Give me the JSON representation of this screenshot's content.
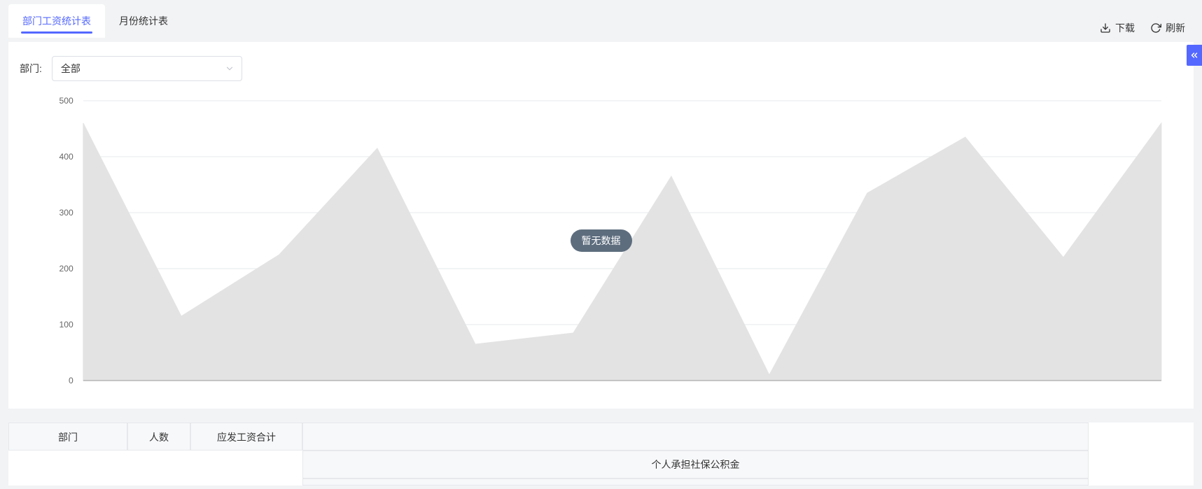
{
  "tabs": [
    {
      "label": "部门工资统计表",
      "active": true
    },
    {
      "label": "月份统计表",
      "active": false
    }
  ],
  "actions": {
    "download": "下载",
    "refresh": "刷新"
  },
  "filter": {
    "label": "部门:",
    "value": "全部"
  },
  "chart": {
    "type": "area",
    "ylim": [
      0,
      500
    ],
    "ytick_step": 100,
    "ytick_labels": [
      "0",
      "100",
      "200",
      "300",
      "400",
      "500"
    ],
    "values": [
      460,
      115,
      225,
      415,
      65,
      85,
      365,
      10,
      335,
      435,
      220,
      460
    ],
    "area_color": "#e3e3e3",
    "line_color": "#e3e3e3",
    "grid_color": "#e6e8eb",
    "background_color": "#ffffff",
    "tick_fontsize": 12,
    "tick_color": "#666666",
    "no_data_label": "暂无数据",
    "badge_bg": "#5d6d7e",
    "badge_text_color": "#ffffff"
  },
  "table": {
    "group_header": "个人承担社保公积金",
    "columns": [
      "部门",
      "人数",
      "应发工资合计"
    ]
  },
  "side_handle_icon": "chevron-double-left"
}
